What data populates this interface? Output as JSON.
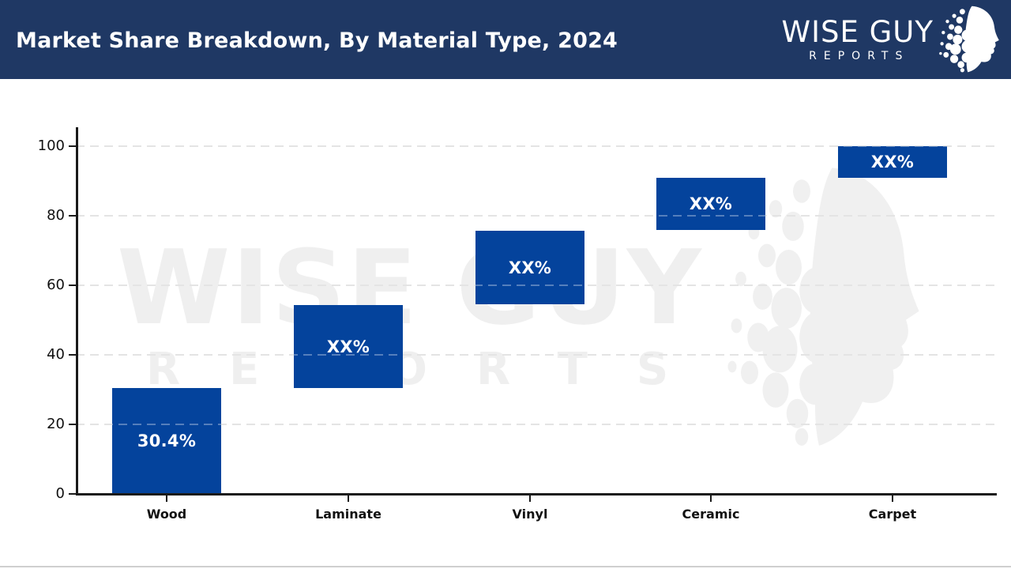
{
  "header": {
    "title": "Market Share Breakdown, By Material Type, 2024",
    "logo": {
      "line1": "WISE GUY",
      "line2": "REPORTS"
    },
    "bg_color": "#1f3864"
  },
  "watermark": {
    "line1": "WISE GUY",
    "line2": "REPORTS"
  },
  "chart_data": {
    "type": "bar",
    "subtype": "waterfall",
    "title": "Market Share Breakdown, By Material Type, 2024",
    "categories": [
      "Wood",
      "Laminate",
      "Vinyl",
      "Ceramic",
      "Carpet"
    ],
    "segments": [
      {
        "category": "Wood",
        "start": 0,
        "end": 30.4,
        "label": "30.4%"
      },
      {
        "category": "Laminate",
        "start": 30.4,
        "end": 54.3,
        "label": "XX%"
      },
      {
        "category": "Vinyl",
        "start": 54.5,
        "end": 75.7,
        "label": "XX%"
      },
      {
        "category": "Ceramic",
        "start": 75.9,
        "end": 90.9,
        "label": "XX%"
      },
      {
        "category": "Carpet",
        "start": 91.0,
        "end": 100.0,
        "label": "XX%"
      }
    ],
    "yticks": [
      0,
      20,
      40,
      60,
      80,
      100
    ],
    "ylim": [
      0,
      105
    ],
    "xlabel": "",
    "ylabel": "",
    "grid": "horizontal-dashed",
    "legend": "none",
    "bar_color": "#04439c",
    "label_color": "#ffffff"
  },
  "colors": {
    "header_navy": "#1f3864",
    "bar_blue": "#04439c",
    "grid_gray": "#d7d7d7",
    "axis_black": "#1a1a1a",
    "watermark_gray": "#efefef"
  }
}
